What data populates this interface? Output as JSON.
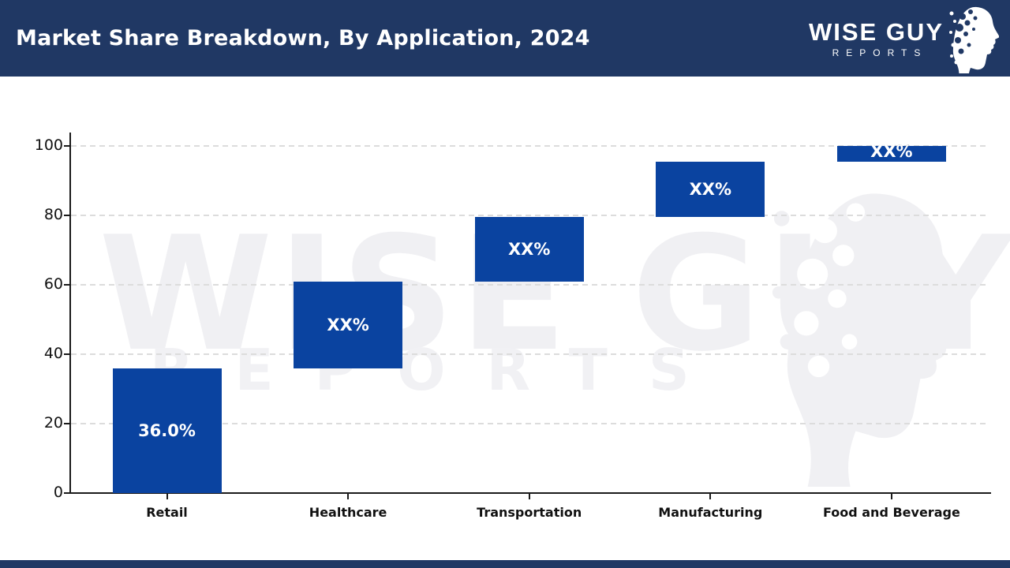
{
  "header": {
    "title": "Market Share Breakdown, By Application, 2024",
    "logo": {
      "wordmark": "WISE GUY",
      "subtext": "REPORTS"
    },
    "bg_color": "#203864"
  },
  "watermark": {
    "line1": "WISE GUY",
    "line2": "REPORTS"
  },
  "chart_data": {
    "type": "bar",
    "subtype": "waterfall",
    "title": "Market Share Breakdown, By Application, 2024",
    "categories": [
      "Retail",
      "Healthcare",
      "Transportation",
      "Manufacturing",
      "Food and Beverage"
    ],
    "segments": [
      {
        "category": "Retail",
        "start": 0,
        "end": 36,
        "label": "36.0%"
      },
      {
        "category": "Healthcare",
        "start": 36,
        "end": 61,
        "label": "XX%"
      },
      {
        "category": "Transportation",
        "start": 61,
        "end": 79.5,
        "label": "XX%"
      },
      {
        "category": "Manufacturing",
        "start": 79.5,
        "end": 95.5,
        "label": "XX%"
      },
      {
        "category": "Food and Beverage",
        "start": 95.5,
        "end": 100,
        "label": "XX%"
      }
    ],
    "y_ticks": [
      0,
      20,
      40,
      60,
      80,
      100
    ],
    "ylim": [
      0,
      104
    ],
    "xlabel": "",
    "ylabel": "",
    "grid": "horizontal-dashed",
    "legend": "none",
    "bar_color": "#0a43a0",
    "bar_label_color": "#ffffff",
    "grid_color": "#dcdcdc",
    "axis_color": "#1a1a1a"
  },
  "footer": {
    "bg_color": "#203864"
  }
}
